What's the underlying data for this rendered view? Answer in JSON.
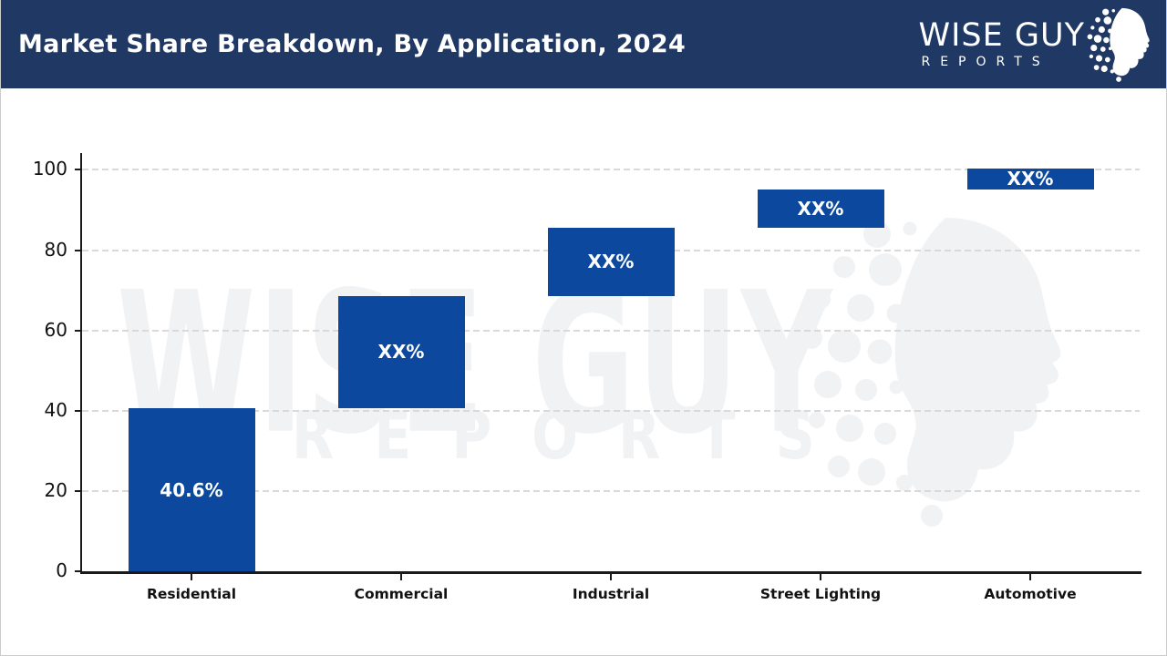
{
  "header": {
    "title": "Market Share Breakdown, By Application, 2024",
    "logo": {
      "line1": "WISE GUY",
      "line2": "REPORTS"
    }
  },
  "watermark": {
    "line1": "WISE GUY",
    "line2": "REPORTS"
  },
  "colors": {
    "header_bg": "#1f3864",
    "bar": "#0b489e",
    "grid": "#d9d9d9",
    "axis": "#1a1a1a",
    "bar_label": "#ffffff",
    "watermark": "#f1f2f4"
  },
  "chart_data": {
    "type": "bar",
    "subtype": "waterfall",
    "title": "Market Share Breakdown, By Application, 2024",
    "categories": [
      "Residential",
      "Commercial",
      "Industrial",
      "Street Lighting",
      "Automotive"
    ],
    "segments": [
      {
        "category": "Residential",
        "start": 0,
        "end": 40.6,
        "value": 40.6,
        "label": "40.6%"
      },
      {
        "category": "Commercial",
        "start": 40.6,
        "end": 68.6,
        "value": 28.0,
        "label": "XX%"
      },
      {
        "category": "Industrial",
        "start": 68.6,
        "end": 85.6,
        "value": 17.0,
        "label": "XX%"
      },
      {
        "category": "Street Lighting",
        "start": 85.6,
        "end": 95.2,
        "value": 9.6,
        "label": "XX%"
      },
      {
        "category": "Automotive",
        "start": 95.2,
        "end": 100.4,
        "value": 5.2,
        "label": "XX%"
      }
    ],
    "xlabel": "",
    "ylabel": "",
    "yticks": [
      0,
      20,
      40,
      60,
      80,
      100
    ],
    "ylim": [
      0,
      104.2
    ],
    "grid": "horizontal-dashed",
    "legend": "none"
  }
}
